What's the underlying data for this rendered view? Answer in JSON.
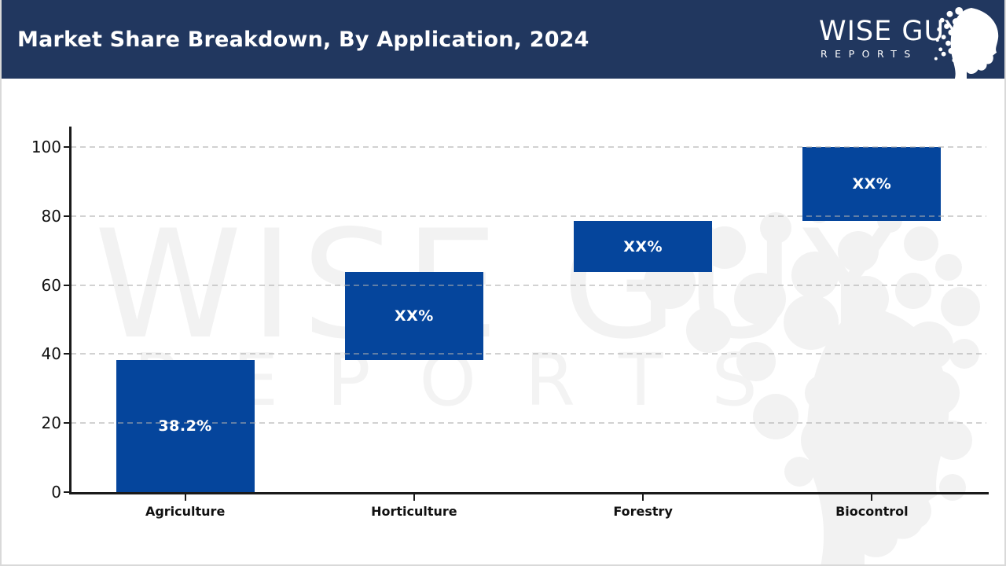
{
  "header": {
    "title": "Market Share Breakdown, By Application, 2024",
    "logo_line1": "WISE GUY",
    "logo_line2": "REPORTS"
  },
  "watermark": {
    "line1": "WISE GUY",
    "line2": "REPORTS"
  },
  "colors": {
    "header_bg": "#21375f",
    "bar": "#05459c",
    "axis": "#1a1a1a",
    "grid": "#d9d9d9",
    "watermark": "#f2f2f2",
    "bar_label_text": "#ffffff"
  },
  "chart_data": {
    "type": "bar",
    "subtype": "waterfall",
    "title": "Market Share Breakdown, By Application, 2024",
    "categories": [
      "Agriculture",
      "Horticulture",
      "Forestry",
      "Biocontrol"
    ],
    "segments": [
      {
        "category": "Agriculture",
        "start": 0,
        "end": 38.2,
        "size": 38.2,
        "label": "38.2%"
      },
      {
        "category": "Horticulture",
        "start": 38.2,
        "end": 63.8,
        "size": 25.6,
        "label": "XX%"
      },
      {
        "category": "Forestry",
        "start": 63.8,
        "end": 78.5,
        "size": 14.7,
        "label": "XX%"
      },
      {
        "category": "Biocontrol",
        "start": 78.5,
        "end": 100,
        "size": 21.5,
        "label": "XX%"
      }
    ],
    "yticks": [
      0,
      20,
      40,
      60,
      80,
      100
    ],
    "ylim": [
      0,
      105.5
    ],
    "xlabel": "",
    "ylabel": "",
    "grid": "horizontal-dashed",
    "legend": "none",
    "unit": "%"
  }
}
